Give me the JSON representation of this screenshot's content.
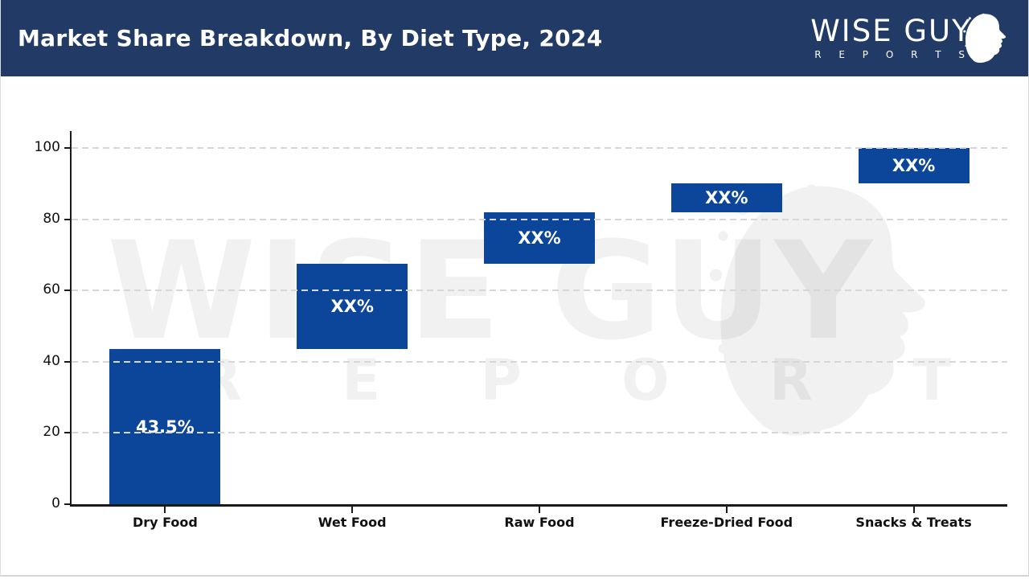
{
  "header": {
    "title": "Market Share Breakdown, By Diet Type, 2024",
    "bg_color": "#223A66",
    "logo": {
      "line1": "WISE GUY",
      "line2": "R E P O R T S",
      "face_icon": "head-profile-dots"
    }
  },
  "watermark": {
    "line1": "WISE GUY",
    "line2": "R E P O R T S",
    "face_icon": "head-profile-dots"
  },
  "chart_data": {
    "type": "bar",
    "subtype": "waterfall",
    "title": "Market Share Breakdown, By Diet Type, 2024",
    "categories": [
      "Dry Food",
      "Wet Food",
      "Raw Food",
      "Freeze-Dried Food",
      "Snacks & Treats"
    ],
    "segments": [
      {
        "category": "Dry Food",
        "start": 0,
        "end": 43.5,
        "label": "43.5%"
      },
      {
        "category": "Wet Food",
        "start": 43.5,
        "end": 67.5,
        "label": "XX%"
      },
      {
        "category": "Raw Food",
        "start": 67.5,
        "end": 82,
        "label": "XX%"
      },
      {
        "category": "Freeze-Dried Food",
        "start": 82,
        "end": 90,
        "label": "XX%"
      },
      {
        "category": "Snacks & Treats",
        "start": 90,
        "end": 100,
        "label": "XX%"
      }
    ],
    "ylim": [
      0,
      100
    ],
    "yticks": [
      0,
      20,
      40,
      60,
      80,
      100
    ],
    "grid": "dashed-horizontal",
    "legend": "none",
    "bar_color": "#0C469B",
    "bar_label_color": "#ffffff"
  },
  "colors": {
    "header_bg": "#223A66",
    "bar": "#0C469B",
    "axis": "#1a1a1a",
    "gridline": "#d7d7d7",
    "watermark": "#ededf0",
    "bottom_hairline": "#d6d6d6"
  }
}
